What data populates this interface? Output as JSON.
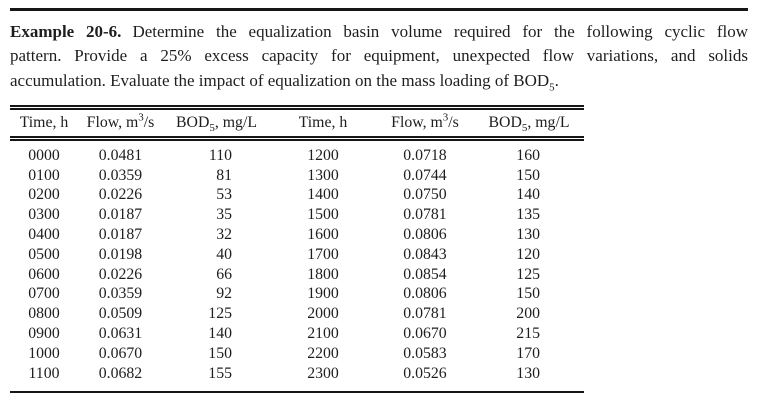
{
  "colors": {
    "text": "#1e1e1e",
    "rule": "#161616",
    "background": "#ffffff"
  },
  "paragraph": {
    "lines": [
      {
        "label": "Example 20-6.",
        "text": "Determine the equalization basin volume required for the following cyclic flow"
      },
      {
        "text": "pattern. Provide a 25% excess capacity for equipment, unexpected flow variations, and solids"
      },
      {
        "text": "accumulation. Evaluate the impact of equalization on the mass loading of BOD",
        "subscript": "5",
        "tail": "."
      }
    ]
  },
  "table": {
    "headers": [
      {
        "pre": "Time, h",
        "sup": "",
        "sub": "",
        "post": ""
      },
      {
        "pre": "Flow, m",
        "sup": "3",
        "sub": "",
        "post": "/s"
      },
      {
        "pre": "BOD",
        "sup": "",
        "sub": "5",
        "post": ", mg/L"
      },
      {
        "pre": "Time, h",
        "sup": "",
        "sub": "",
        "post": ""
      },
      {
        "pre": "Flow, m",
        "sup": "3",
        "sub": "",
        "post": "/s"
      },
      {
        "pre": "BOD",
        "sup": "",
        "sub": "5",
        "post": ", mg/L"
      }
    ],
    "rows": [
      [
        "0000",
        "0.0481",
        "110",
        "1200",
        "0.0718",
        "160"
      ],
      [
        "0100",
        "0.0359",
        "81",
        "1300",
        "0.0744",
        "150"
      ],
      [
        "0200",
        "0.0226",
        "53",
        "1400",
        "0.0750",
        "140"
      ],
      [
        "0300",
        "0.0187",
        "35",
        "1500",
        "0.0781",
        "135"
      ],
      [
        "0400",
        "0.0187",
        "32",
        "1600",
        "0.0806",
        "130"
      ],
      [
        "0500",
        "0.0198",
        "40",
        "1700",
        "0.0843",
        "120"
      ],
      [
        "0600",
        "0.0226",
        "66",
        "1800",
        "0.0854",
        "125"
      ],
      [
        "0700",
        "0.0359",
        "92",
        "1900",
        "0.0806",
        "150"
      ],
      [
        "0800",
        "0.0509",
        "125",
        "2000",
        "0.0781",
        "200"
      ],
      [
        "0900",
        "0.0631",
        "140",
        "2100",
        "0.0670",
        "215"
      ],
      [
        "1000",
        "0.0670",
        "150",
        "2200",
        "0.0583",
        "170"
      ],
      [
        "1100",
        "0.0682",
        "155",
        "2300",
        "0.0526",
        "130"
      ]
    ]
  }
}
